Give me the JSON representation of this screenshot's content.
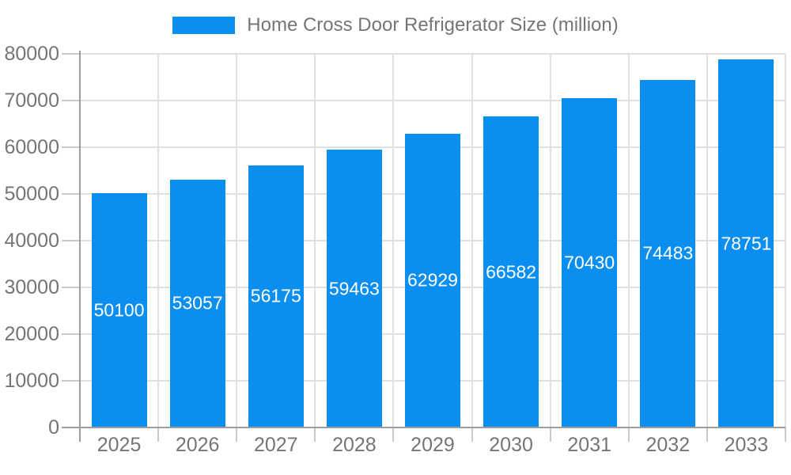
{
  "legend": {
    "label": "Home Cross Door Refrigerator Size (million)"
  },
  "chart_data": {
    "type": "bar",
    "title": "Home Cross Door Refrigerator Size (million)",
    "categories": [
      "2025",
      "2026",
      "2027",
      "2028",
      "2029",
      "2030",
      "2031",
      "2032",
      "2033"
    ],
    "values": [
      50100,
      53057,
      56175,
      59463,
      62929,
      66582,
      70430,
      74483,
      78751
    ],
    "value_labels": [
      "50100",
      "53057",
      "56175",
      "59463",
      "62929",
      "66582",
      "70430",
      "74483",
      "78751"
    ],
    "xlabel": "",
    "ylabel": "",
    "ylim": [
      0,
      80000
    ],
    "ytick_interval": 10000,
    "ytick_labels": [
      "0",
      "10000",
      "20000",
      "30000",
      "40000",
      "50000",
      "60000",
      "70000",
      "80000"
    ],
    "grid": true,
    "legend_position": "top-center",
    "colors": {
      "bar": "#0a8ff1",
      "value_label": "#ffffff",
      "axis_text": "#757575",
      "gridline": "#e0e0e0",
      "axis_line": "#9e9e9e",
      "tick": "#c9c9c9"
    }
  }
}
